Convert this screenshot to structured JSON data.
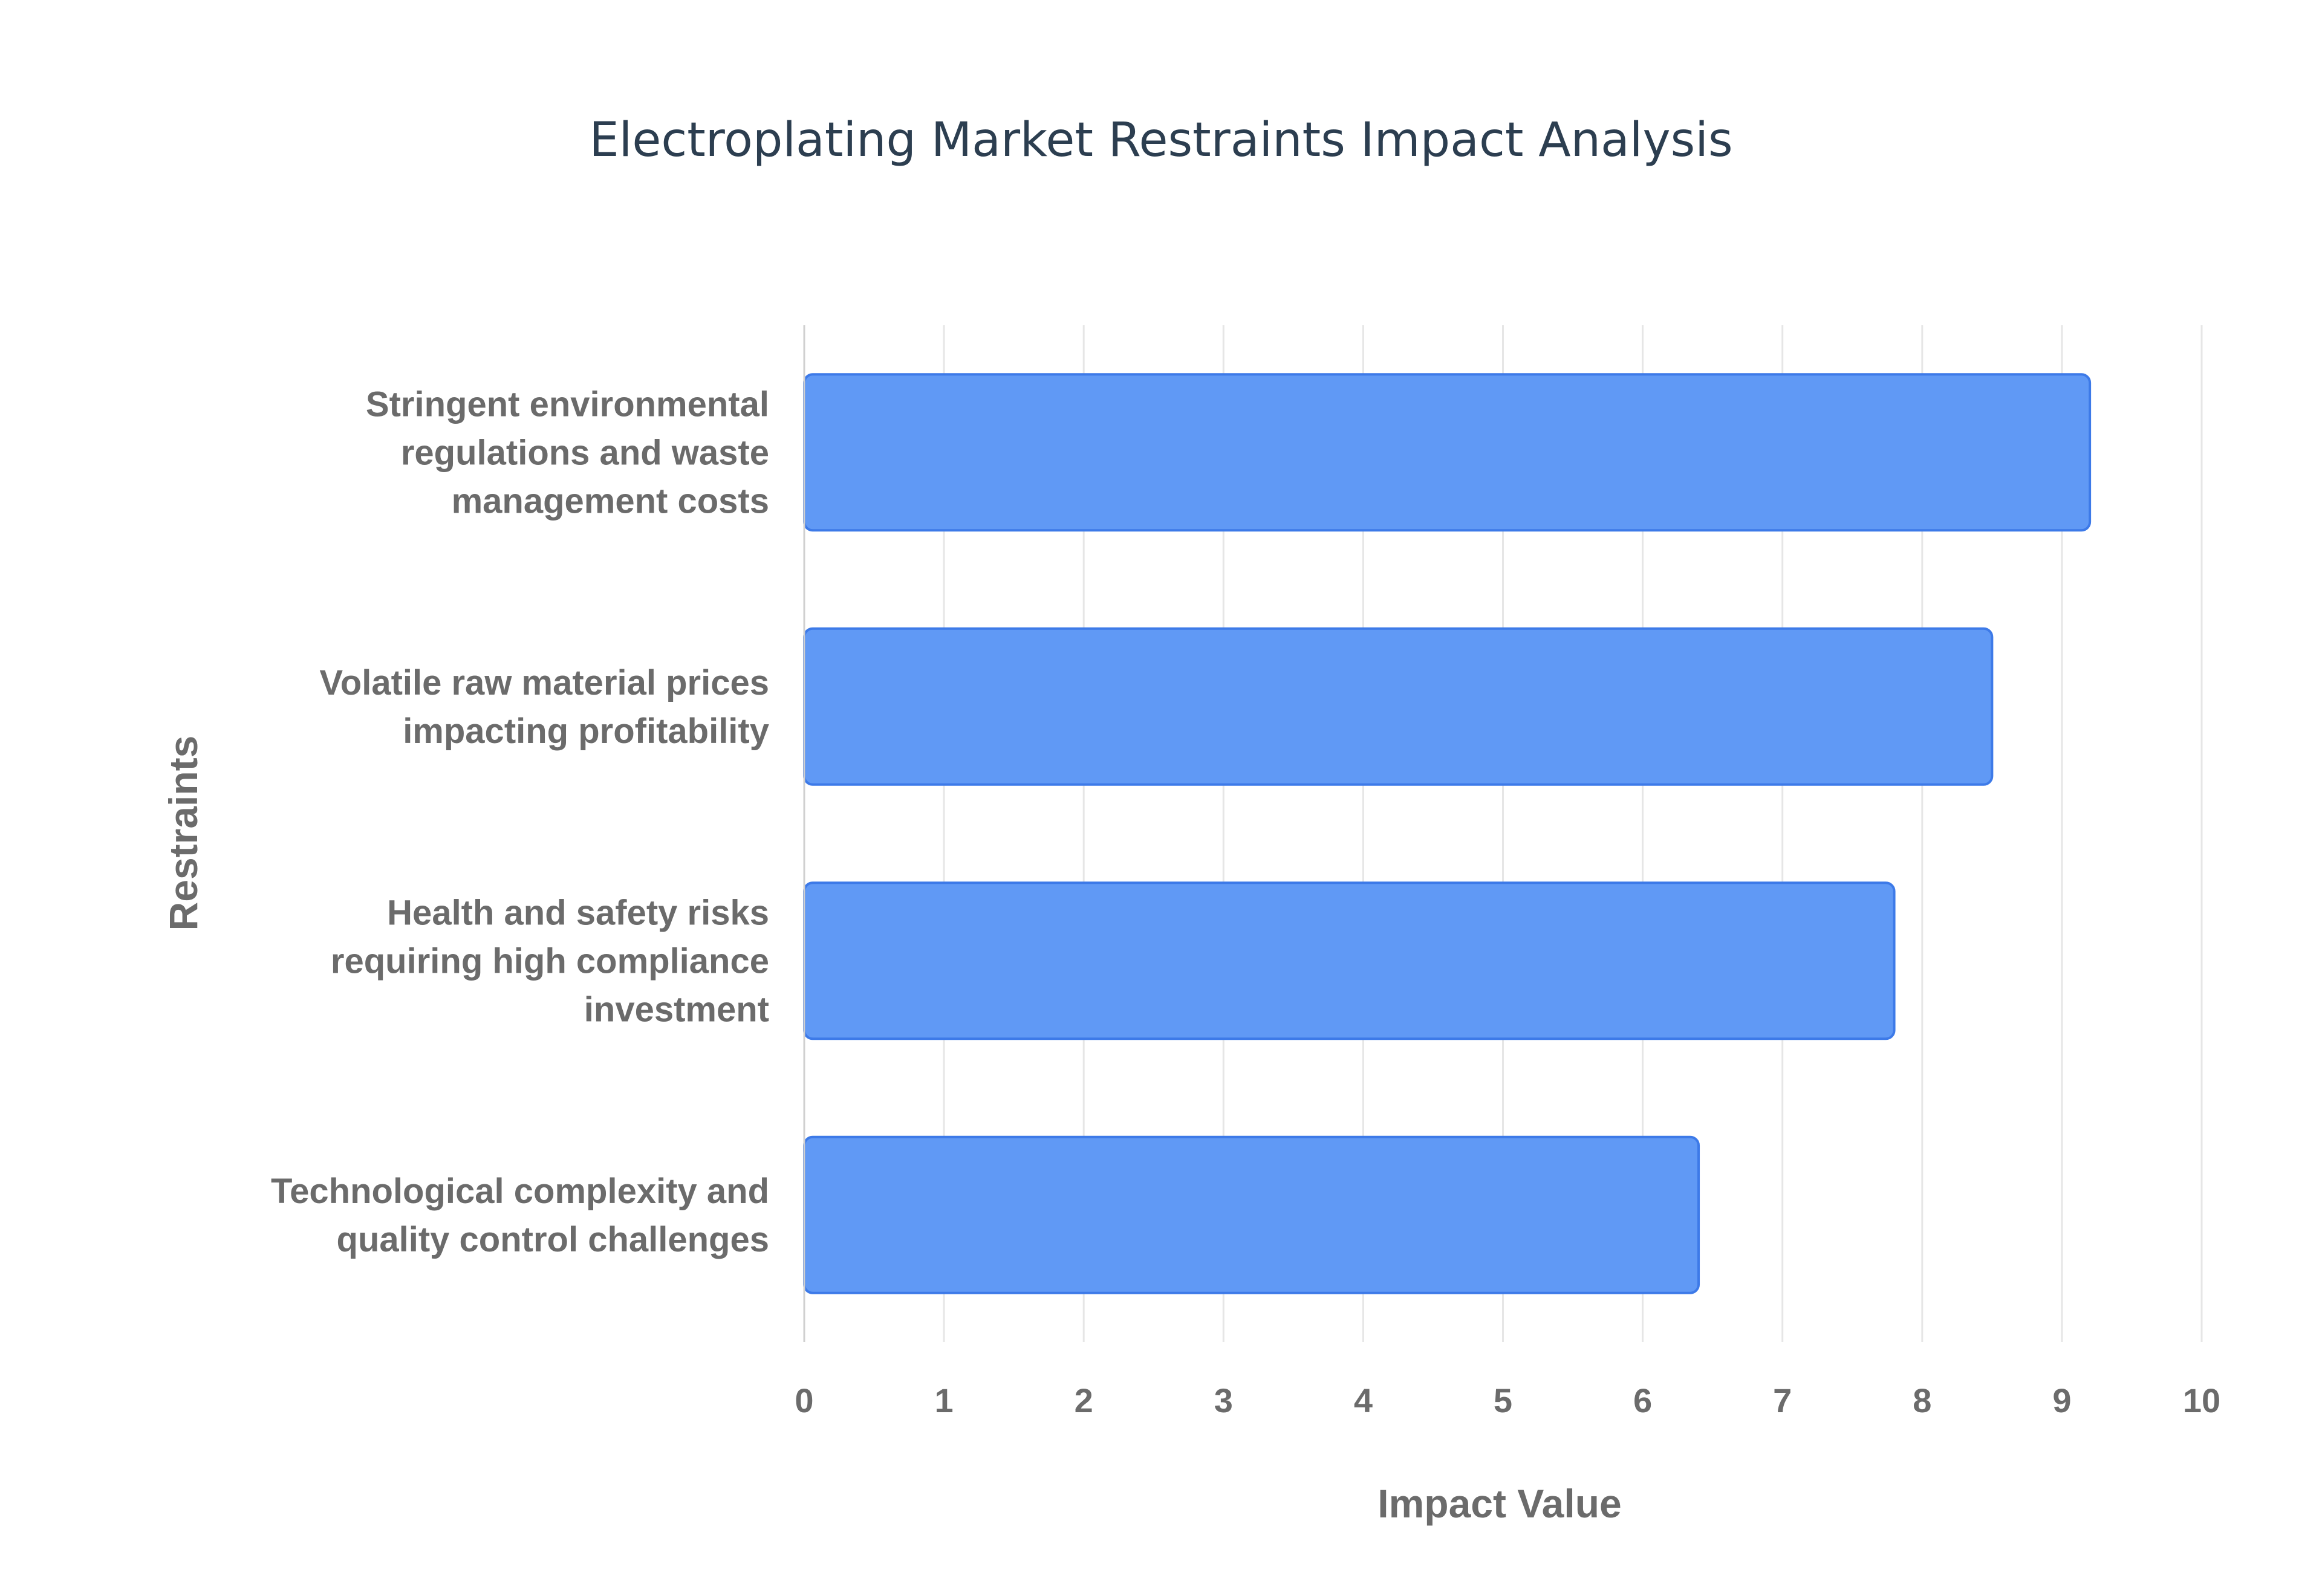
{
  "chart_data": {
    "type": "bar",
    "orientation": "horizontal",
    "title": "Electroplating Market Restraints Impact Analysis",
    "xlabel": "Impact Value",
    "ylabel": "Restraints",
    "xlim": [
      0,
      10
    ],
    "x_ticks": [
      "0",
      "1",
      "2",
      "3",
      "4",
      "5",
      "6",
      "7",
      "8",
      "9",
      "10"
    ],
    "grid": true,
    "legend": "none",
    "bar_color": "#6099f5",
    "bar_border_color": "#3d7ae8",
    "categories": [
      [
        "Stringent environmental",
        "regulations and waste",
        "management costs"
      ],
      [
        "Volatile raw material prices",
        "impacting profitability"
      ],
      [
        "Health and safety risks",
        "requiring high compliance",
        "investment"
      ],
      [
        "Technological complexity and",
        "quality control challenges"
      ]
    ],
    "values": [
      9.2,
      8.5,
      7.8,
      6.4
    ]
  }
}
